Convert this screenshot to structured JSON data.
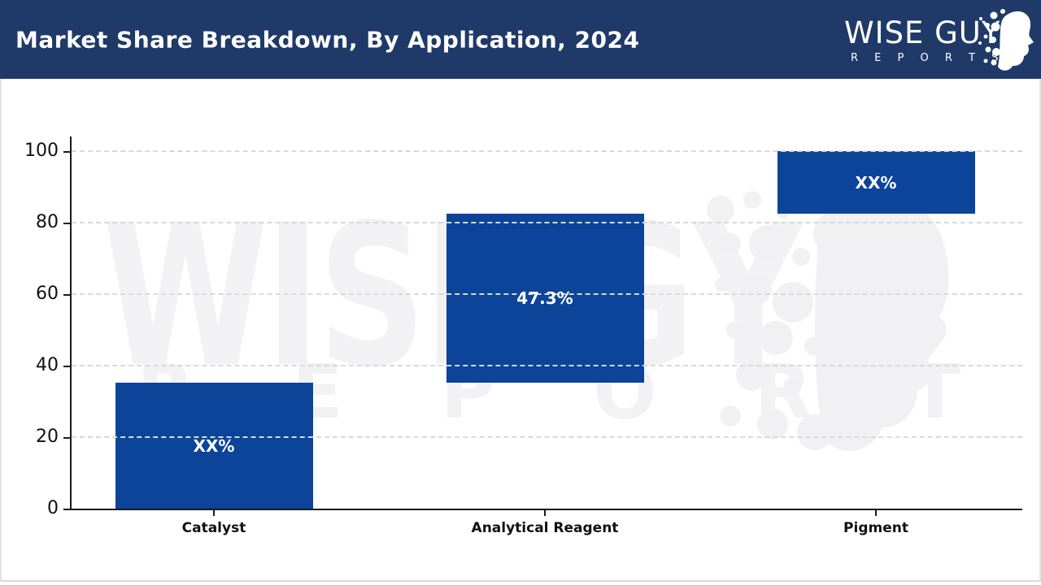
{
  "header": {
    "title": "Market Share Breakdown, By Application, 2024",
    "logo": {
      "line1": "WISE GUY",
      "line2": "R E P O R T S"
    }
  },
  "watermark": {
    "word1": "WISE G",
    "word1b": "Y",
    "word2": "R E P O R T S"
  },
  "chart_data": {
    "type": "bar",
    "subtype": "floating-waterfall",
    "title": "Market Share Breakdown, By Application, 2024",
    "categories": [
      "Catalyst",
      "Analytical Reagent",
      "Pigment"
    ],
    "bars": [
      {
        "category": "Catalyst",
        "start": 0,
        "end": 35.2,
        "label": "XX%"
      },
      {
        "category": "Analytical Reagent",
        "start": 35.2,
        "end": 82.5,
        "label": "47.3%"
      },
      {
        "category": "Pigment",
        "start": 82.5,
        "end": 100,
        "label": "XX%"
      }
    ],
    "ylim": [
      0,
      100
    ],
    "yticks": [
      0,
      20,
      40,
      60,
      80,
      100
    ],
    "grid": {
      "axis": "y",
      "style": "dashed",
      "color": "#d9d9d9"
    },
    "legend": "none",
    "bar_color": "#0b4499",
    "bar_label_color": "#ffffff",
    "axis_color": "#1a1a1a"
  },
  "colors": {
    "header_bg": "#1f3a68",
    "bar_blue": "#0b4499",
    "watermark_gray": "#f2f2f4",
    "grid_gray": "#d9d9d9"
  }
}
